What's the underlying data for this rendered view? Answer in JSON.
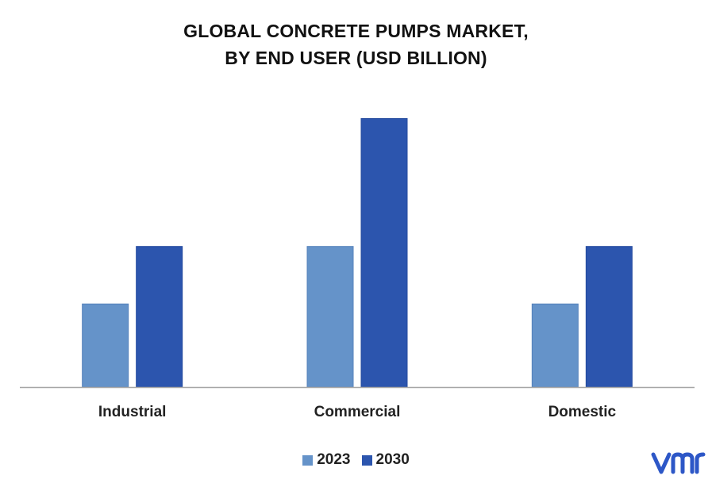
{
  "title": {
    "line1": "GLOBAL CONCRETE PUMPS MARKET,",
    "line2": "BY END USER (USD BILLION)"
  },
  "colors": {
    "series_2023": "#6593c9",
    "series_2030": "#2c55ae",
    "axis": "#a6a6a6",
    "logo": "#2d57c7"
  },
  "logo": {
    "text": "vmr",
    "icon": "vmr-logo"
  },
  "chart_data": {
    "type": "bar",
    "categories": [
      "Industrial",
      "Commercial",
      "Domestic"
    ],
    "series": [
      {
        "name": "2023",
        "values": [
          1.3,
          2.2,
          1.3
        ]
      },
      {
        "name": "2030",
        "values": [
          2.2,
          4.2,
          2.2
        ]
      }
    ],
    "ylim": [
      0,
      5
    ],
    "xlabel": "",
    "ylabel": "",
    "grid": false,
    "legend": "bottom-center"
  }
}
